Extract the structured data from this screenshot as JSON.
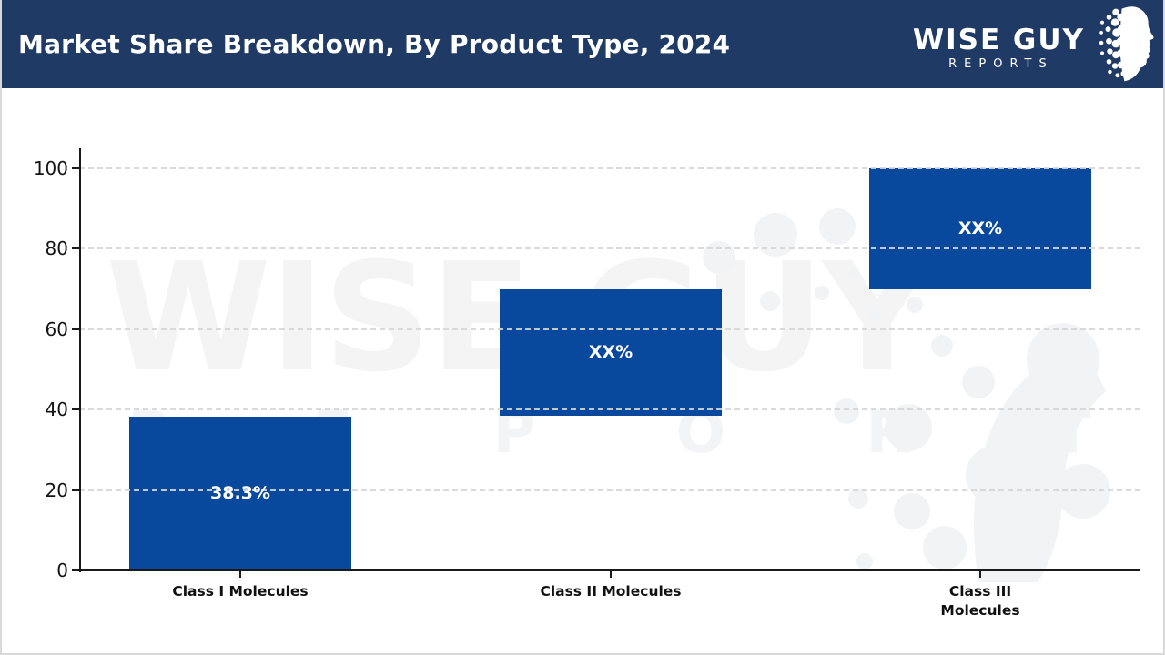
{
  "header": {
    "title": "Market Share Breakdown, By Product Type, 2024",
    "logo": {
      "line1": "WISE GUY",
      "line2": "REPORTS"
    }
  },
  "watermark": {
    "line1": "WISE GUY",
    "line2": "R E P O R T S"
  },
  "chart_data": {
    "type": "bar",
    "subtype": "waterfall-segments",
    "title": "Market Share Breakdown, By Product Type, 2024",
    "categories": [
      "Class I Molecules",
      "Class II Molecules",
      "Class III\nMolecules"
    ],
    "bars": [
      {
        "category": "Class I Molecules",
        "value_label": "38.3%",
        "start": 0,
        "end": 38.3
      },
      {
        "category": "Class II Molecules",
        "value_label": "XX%",
        "start": 38.5,
        "end": 70
      },
      {
        "category": "Class III Molecules",
        "value_label": "XX%",
        "start": 70,
        "end": 100
      }
    ],
    "yticks": [
      0,
      20,
      40,
      60,
      80,
      100
    ],
    "ylim": [
      0,
      105
    ],
    "xlabel": "",
    "ylabel": "",
    "grid": "horizontal-dashed",
    "legend": "none",
    "colors": {
      "bar": "#08489d",
      "bar_label": "#ffffff",
      "grid_line": "#d9d9d9",
      "axis": "#1a1a1a",
      "tick_label": "#141414",
      "header_bg": "#1f3a65",
      "header_text": "#ffffff",
      "watermark": "#f3f4f5"
    }
  }
}
